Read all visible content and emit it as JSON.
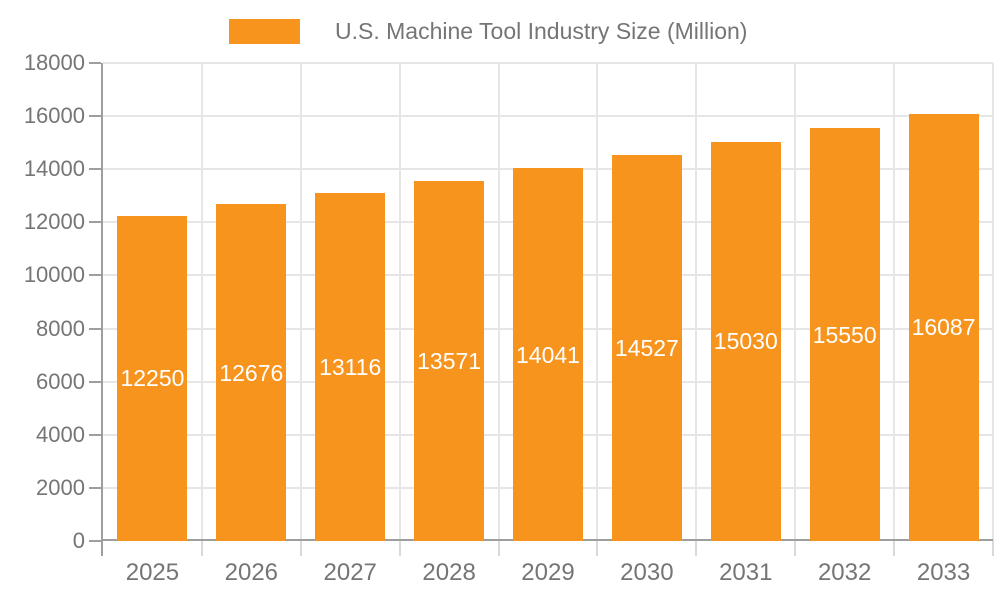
{
  "chart_data": {
    "type": "bar",
    "title": "U.S. Machine Tool Industry Size (Million)",
    "series_name": "U.S. Machine Tool Industry Size (Million)",
    "categories": [
      "2025",
      "2026",
      "2027",
      "2028",
      "2029",
      "2030",
      "2031",
      "2032",
      "2033"
    ],
    "values": [
      12250,
      12676,
      13116,
      13571,
      14041,
      14527,
      15030,
      15550,
      16087
    ],
    "xlabel": "",
    "ylabel": "",
    "ylim": [
      0,
      18000
    ],
    "y_ticks": [
      0,
      2000,
      4000,
      6000,
      8000,
      10000,
      12000,
      14000,
      16000,
      18000
    ],
    "grid": true,
    "legend_position": "top",
    "colors": {
      "bar": "#F7941E",
      "bar_value_label": "#FFFFFF",
      "grid_line": "#E6E6E6",
      "axis_line": "#9E9E9E",
      "minor_tick": "#D9D9D9",
      "axis_text": "#757575",
      "background": "#FFFFFF"
    }
  }
}
